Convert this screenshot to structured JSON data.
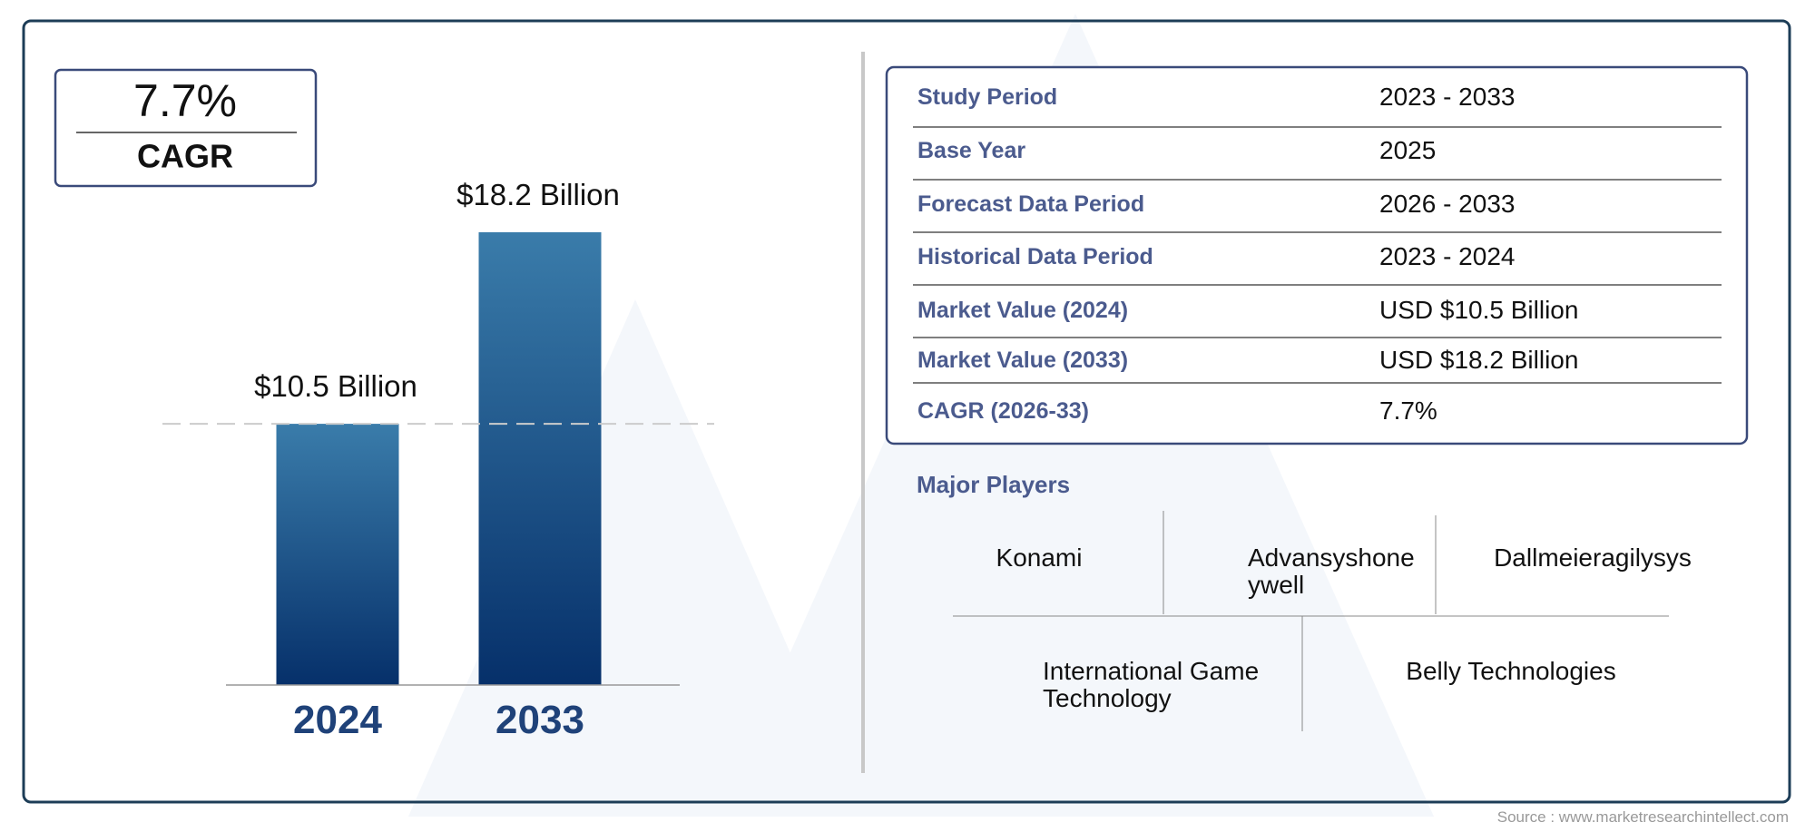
{
  "cagr_box": {
    "value": "7.7%",
    "label": "CAGR"
  },
  "chart_data": {
    "type": "bar",
    "categories": [
      "2024",
      "2033"
    ],
    "values": [
      10.5,
      18.2
    ],
    "value_labels": [
      "$10.5 Billion",
      "$18.2 Billion"
    ],
    "color": [
      "#3a7caa",
      "#06306a"
    ]
  },
  "table": {
    "rows": [
      [
        "Study Period",
        "2023 - 2033"
      ],
      [
        "Base Year",
        "2025"
      ],
      [
        "Forecast Data Period",
        "2026 - 2033"
      ],
      [
        "Historical Data Period",
        "2023 - 2024"
      ],
      [
        "Market Value (2024)",
        "USD $10.5 Billion"
      ],
      [
        "Market Value (2033)",
        "USD $18.2 Billion"
      ],
      [
        "CAGR (2026-33)",
        "7.7%"
      ]
    ]
  },
  "major_players": {
    "title": "Major Players",
    "players": [
      "Konami",
      "Advansyshoneywell",
      "Dallmeieragilysys",
      "International Game Technology",
      "Belly Technologies"
    ]
  },
  "source": "Source : www.marketresearchintellect.com"
}
